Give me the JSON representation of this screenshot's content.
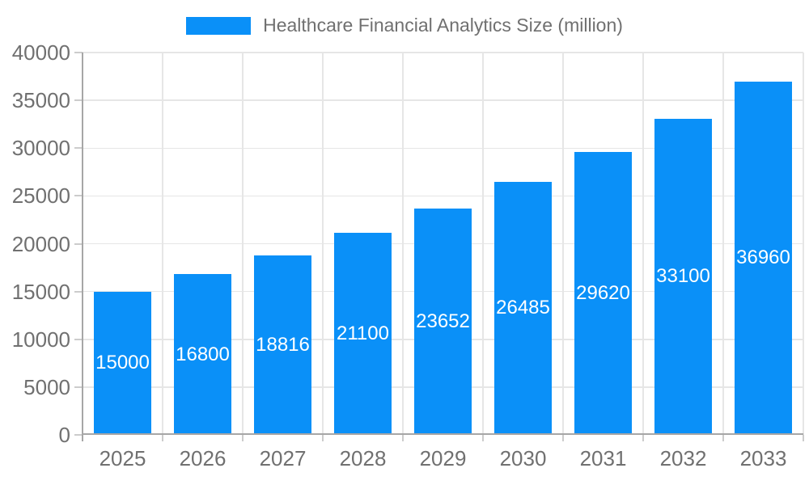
{
  "legend": {
    "label": "Healthcare Financial Analytics Size (million)"
  },
  "colors": {
    "bar": "#0a90f8",
    "bar_label": "#ffffff",
    "grid": "#e6e6e6",
    "tick": "#cccccc",
    "axis": "#a6a6a6",
    "text": "#707070",
    "background": "#ffffff"
  },
  "chart_data": {
    "type": "bar",
    "title": "Healthcare Financial Analytics Size (million)",
    "categories": [
      "2025",
      "2026",
      "2027",
      "2028",
      "2029",
      "2030",
      "2031",
      "2032",
      "2033"
    ],
    "values": [
      15000,
      16800,
      18816,
      21100,
      23652,
      26485,
      29620,
      33100,
      36960
    ],
    "bar_labels": [
      "15000",
      "16800",
      "18816",
      "21100",
      "23652",
      "26485",
      "29620",
      "33100",
      "36960"
    ],
    "xlabel": "",
    "ylabel": "",
    "ylim": [
      0,
      40000
    ],
    "ytick_step": 5000,
    "ytick_labels": [
      "0",
      "5000",
      "10000",
      "15000",
      "20000",
      "25000",
      "30000",
      "35000",
      "40000"
    ],
    "grid": true,
    "legend_position": "top",
    "bar_label_position": "inside-center"
  }
}
